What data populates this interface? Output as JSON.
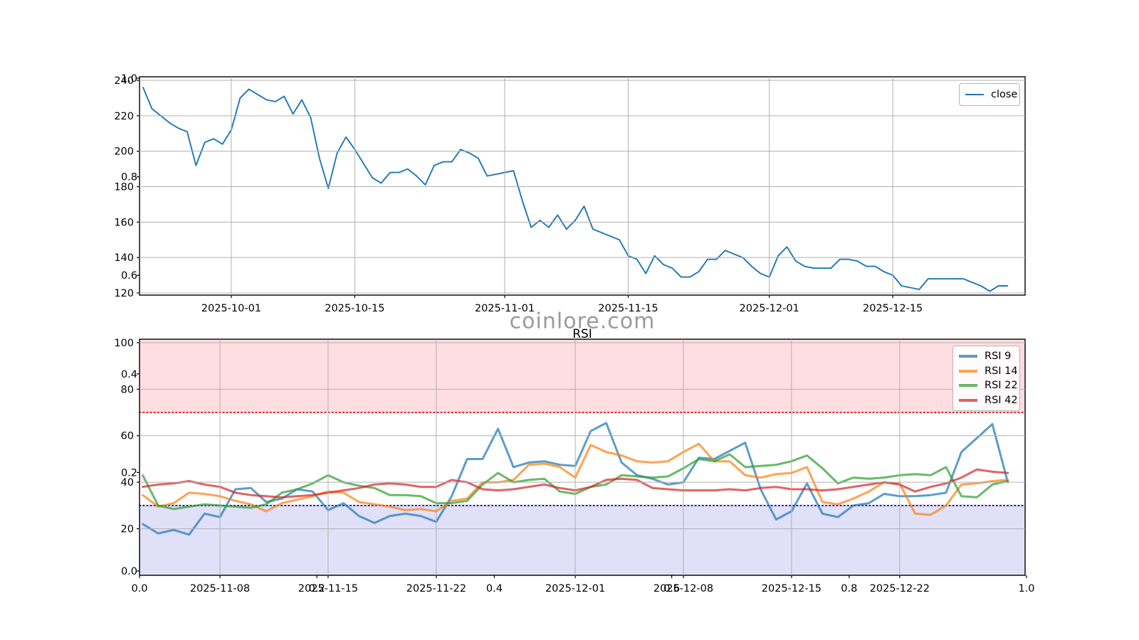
{
  "watermark": {
    "text": "coinlore.com"
  },
  "overlay_axis": {
    "y_ticks": [
      "1.0",
      "0.8",
      "0.6",
      "0.4",
      "0.2",
      "0.0"
    ],
    "x_ticks": [
      "0.0",
      "0.2",
      "0.4",
      "0.6",
      "0.8",
      "1.0"
    ]
  },
  "chart_data": [
    {
      "id": "price",
      "type": "line",
      "title": "",
      "x_start_date": "2025-09-21",
      "x_interval": "daily",
      "x_tick_labels": [
        "2025-10-01",
        "2025-10-15",
        "2025-11-01",
        "2025-11-15",
        "2025-12-01",
        "2025-12-15"
      ],
      "x_tick_days": [
        10,
        24,
        41,
        55,
        71,
        85
      ],
      "y_ticks": [
        240,
        220,
        200,
        180,
        160,
        140,
        120
      ],
      "ylim": [
        118.8,
        242
      ],
      "grid": true,
      "legend_position": "upper right",
      "series": [
        {
          "name": "close",
          "color": "#1f77b4",
          "values": [
            236,
            224,
            220,
            216,
            213,
            211,
            192,
            205,
            207,
            204,
            212,
            230,
            235,
            232,
            229,
            228,
            231,
            221,
            229,
            219,
            196,
            179,
            199,
            208,
            201,
            193,
            185,
            182,
            188,
            188,
            190,
            186,
            181,
            192,
            194,
            194,
            201,
            199,
            196,
            186,
            187,
            188,
            189,
            172,
            157,
            161,
            157,
            164,
            156,
            161,
            169,
            156,
            154,
            152,
            150,
            141,
            139,
            131,
            141,
            136,
            134,
            129,
            129,
            132,
            139,
            139,
            144,
            142,
            140,
            135,
            131,
            129,
            141,
            146,
            138,
            135,
            134,
            134,
            134,
            139,
            139,
            138,
            135,
            135,
            132,
            130,
            124,
            123,
            122,
            128,
            128,
            128,
            128,
            128,
            126,
            124,
            121,
            124,
            124
          ]
        }
      ]
    },
    {
      "id": "rsi",
      "type": "line",
      "title": "RSI",
      "x_start_date": "2025-11-03",
      "x_interval": "daily",
      "x_tick_labels": [
        "2025-11-08",
        "2025-11-15",
        "2025-11-22",
        "2025-12-01",
        "2025-12-08",
        "2025-12-15",
        "2025-12-22"
      ],
      "x_tick_days": [
        5,
        12,
        19,
        28,
        35,
        42,
        49
      ],
      "y_ticks": [
        100,
        80,
        60,
        40,
        20
      ],
      "ylim": [
        0,
        101.5
      ],
      "grid": true,
      "overbought_level": 70,
      "oversold_level": 30,
      "overbought_band_color": "rgba(255,45,70,0.16)",
      "oversold_band_color": "rgba(60,60,215,0.16)",
      "overbought_line_color": "#d62728",
      "oversold_line_color": "#2020b0",
      "legend_position": "upper right",
      "series": [
        {
          "name": "RSI 9",
          "color": "#1f77b4",
          "values": [
            22,
            18,
            19.5,
            17.5,
            26.5,
            25,
            37,
            37.5,
            31.5,
            33,
            37,
            36,
            28,
            31,
            25.5,
            22.5,
            25.5,
            26.5,
            25.5,
            23,
            34,
            50,
            50,
            63,
            46.5,
            48.5,
            49,
            47.5,
            47,
            62,
            65.5,
            48.5,
            43,
            41.5,
            39,
            40,
            50.5,
            50,
            53.5,
            57,
            37,
            24,
            27.5,
            39.5,
            26.5,
            25,
            30,
            31,
            35,
            34,
            34,
            34.5,
            35.5,
            53,
            59,
            65,
            40
          ]
        },
        {
          "name": "RSI 14",
          "color": "#ff7f0e",
          "values": [
            34.5,
            29.5,
            31,
            35.5,
            35,
            34,
            32,
            30.5,
            27.5,
            31,
            32.5,
            34,
            36,
            35.5,
            31.5,
            30.5,
            29.5,
            28,
            28.5,
            27.5,
            32,
            33,
            40,
            40,
            41,
            47.5,
            48,
            46.5,
            42,
            56,
            53,
            51.5,
            49,
            48.5,
            49,
            53,
            56.5,
            49,
            49,
            43,
            42,
            43.5,
            44,
            46.5,
            31.5,
            30.5,
            33,
            36,
            40,
            39.5,
            26.5,
            26,
            30,
            39,
            39.5,
            40.5,
            41
          ]
        },
        {
          "name": "RSI 22",
          "color": "#2ca02c",
          "values": [
            43,
            30,
            28.5,
            29.5,
            30.5,
            30,
            29.5,
            29,
            30.5,
            35.5,
            37,
            39.5,
            43,
            40,
            38.5,
            37.5,
            34.5,
            34.5,
            34,
            31,
            31,
            32,
            39,
            44,
            40,
            41,
            41.5,
            36,
            35,
            38,
            39,
            43,
            42.5,
            42,
            42.5,
            46,
            50,
            49,
            52,
            46.5,
            47,
            47.5,
            49,
            51.5,
            46,
            39.5,
            42,
            41.5,
            42,
            43,
            43.5,
            43,
            46.5,
            34,
            33.5,
            39,
            40.5
          ]
        },
        {
          "name": "RSI 42",
          "color": "#d62728",
          "values": [
            38,
            39,
            39.5,
            40.5,
            39,
            38,
            35.5,
            34.5,
            34,
            33.5,
            34,
            34.5,
            35.5,
            36.5,
            37.5,
            39,
            39.5,
            39,
            38,
            38,
            41,
            40,
            37,
            36.5,
            37,
            38,
            39,
            37.5,
            36.5,
            38,
            41,
            41.5,
            41,
            37.5,
            37,
            36.5,
            36.5,
            36.5,
            37,
            36.5,
            37.5,
            38,
            37,
            37,
            36.5,
            37,
            38,
            39,
            40,
            39,
            36,
            38,
            39.5,
            42,
            45.5,
            44.5,
            44
          ]
        }
      ]
    }
  ]
}
